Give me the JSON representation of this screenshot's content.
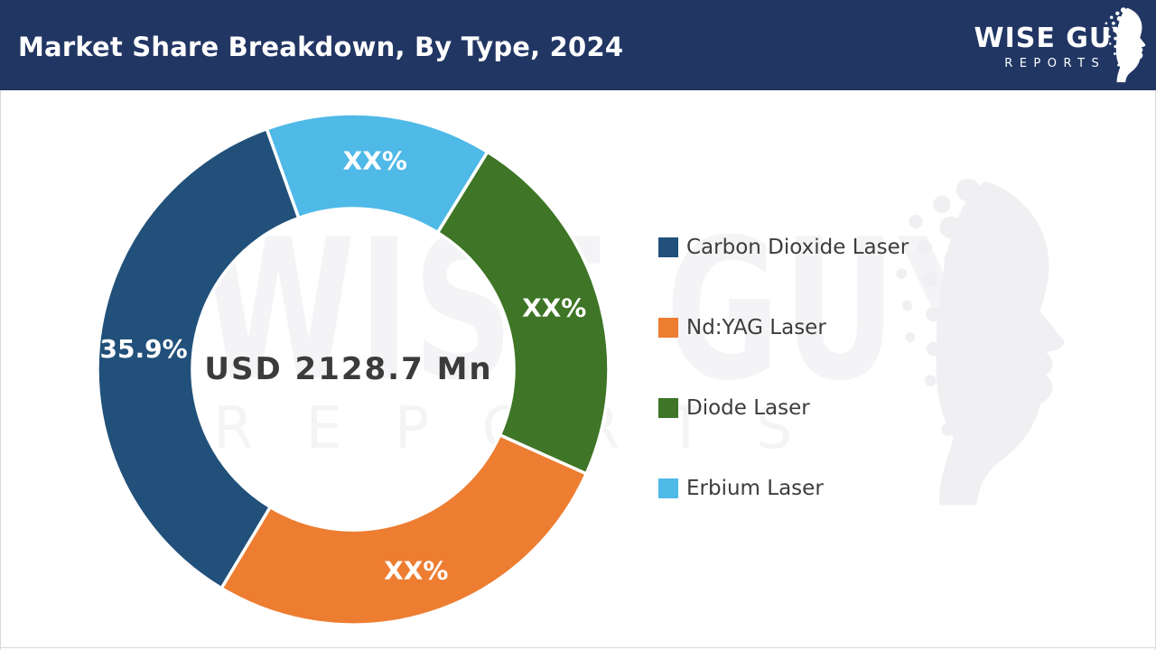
{
  "header": {
    "title": "Market Share Breakdown, By Type, 2024",
    "background_color": "#213663",
    "title_color": "#ffffff",
    "logo": {
      "wordmark": "WISE GUY",
      "subtitle": "REPORTS"
    }
  },
  "watermark": {
    "line1": "WISE GUY",
    "line2": "REPORTS",
    "color": "#f4f4f6"
  },
  "chart_data": {
    "type": "pie",
    "subtype": "donut",
    "title": "Market Share Breakdown, By Type, 2024",
    "center_label": "USD 2128.7 Mn",
    "legend_position": "right",
    "start_angle_deg": 211,
    "draw_order": [
      0,
      3,
      2,
      1
    ],
    "segments": [
      {
        "name": "Carbon Dioxide Laser",
        "value_pct": 35.9,
        "label": "35.9%",
        "color": "#21507a"
      },
      {
        "name": "Nd:YAG Laser",
        "value_pct": 26.9,
        "label": "XX%",
        "color": "#ed7d31"
      },
      {
        "name": "Diode Laser",
        "value_pct": 22.9,
        "label": "XX%",
        "color": "#3e7526"
      },
      {
        "name": "Erbium Laser",
        "value_pct": 14.3,
        "label": "XX%",
        "color": "#4fb9e7"
      }
    ]
  }
}
